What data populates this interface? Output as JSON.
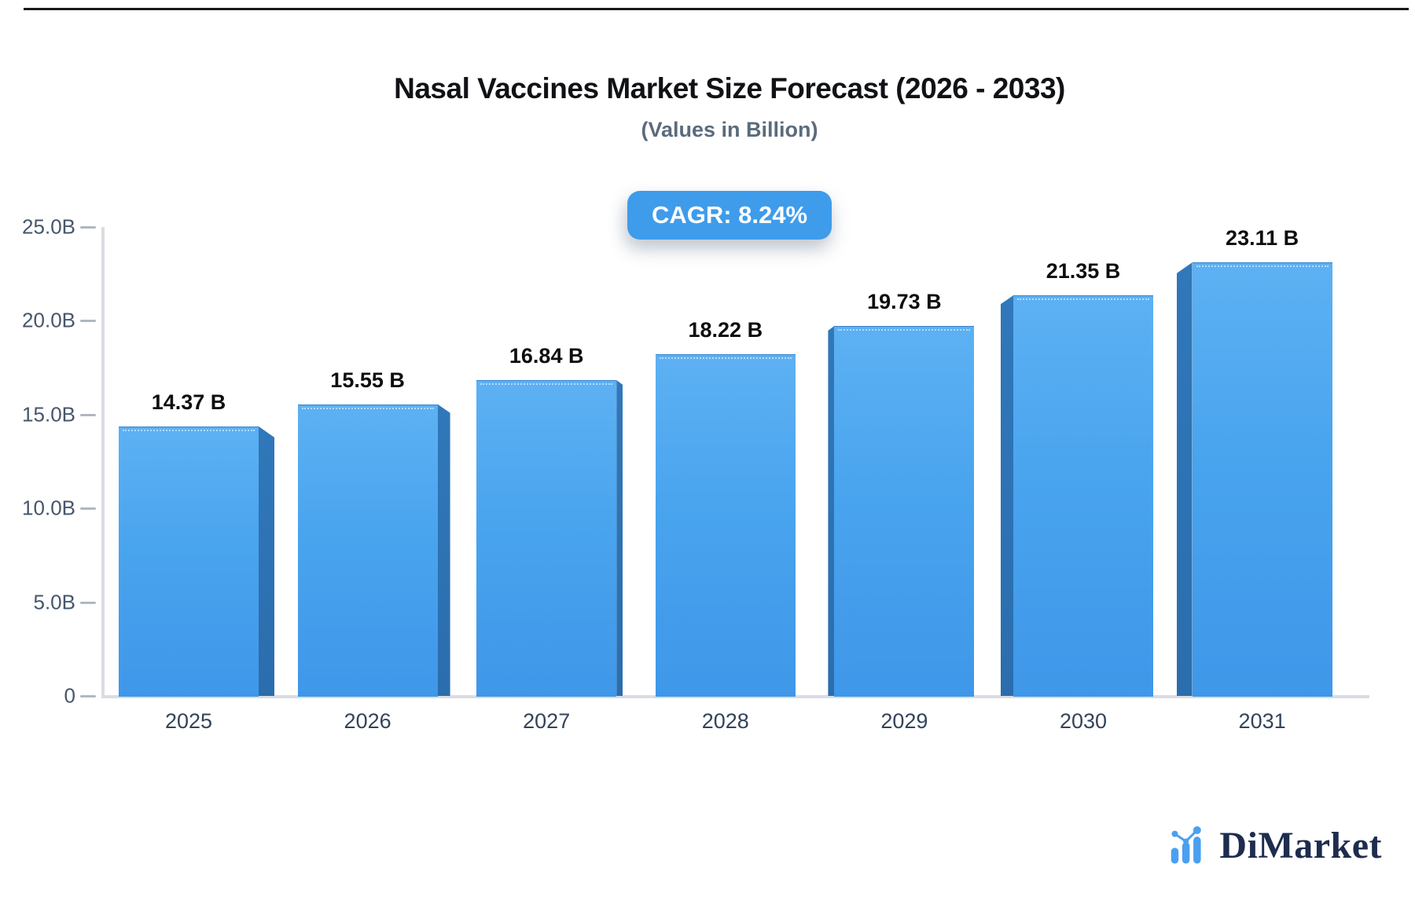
{
  "header": {
    "title": "Nasal Vaccines Market Size Forecast (2026 - 2033)",
    "subtitle": "(Values in Billion)",
    "cagr_badge": "CAGR: 8.24%"
  },
  "chart_data": {
    "type": "bar",
    "title": "Nasal Vaccines Market Size Forecast (2026 - 2033)",
    "subtitle": "(Values in Billion)",
    "cagr": "CAGR: 8.24%",
    "categories": [
      "2025",
      "2026",
      "2027",
      "2028",
      "2029",
      "2030",
      "2031"
    ],
    "values": [
      14.37,
      15.55,
      16.84,
      18.22,
      19.73,
      21.35,
      23.11
    ],
    "bar_labels": [
      "14.37 B",
      "15.55 B",
      "16.84 B",
      "18.22 B",
      "19.73 B",
      "21.35 B",
      "23.11 B"
    ],
    "unit": "Billion",
    "y_ticks": [
      {
        "label": "25.0B",
        "value": 25
      },
      {
        "label": "20.0B",
        "value": 20
      },
      {
        "label": "15.0B",
        "value": 15
      },
      {
        "label": "10.0B",
        "value": 10
      },
      {
        "label": "5.0B",
        "value": 5
      },
      {
        "label": "0",
        "value": 0
      }
    ],
    "ylim": [
      0,
      25
    ],
    "grid": false,
    "legend": false,
    "colors": {
      "bar_top": "#5db1f3",
      "bar_bottom": "#3f97e9",
      "bar_side": "#2e74b4",
      "accent": "#3e9ceb",
      "axis": "#d9dde2"
    }
  },
  "branding": {
    "name": "DiMarket",
    "icon": "bar-chart-logo-icon"
  }
}
